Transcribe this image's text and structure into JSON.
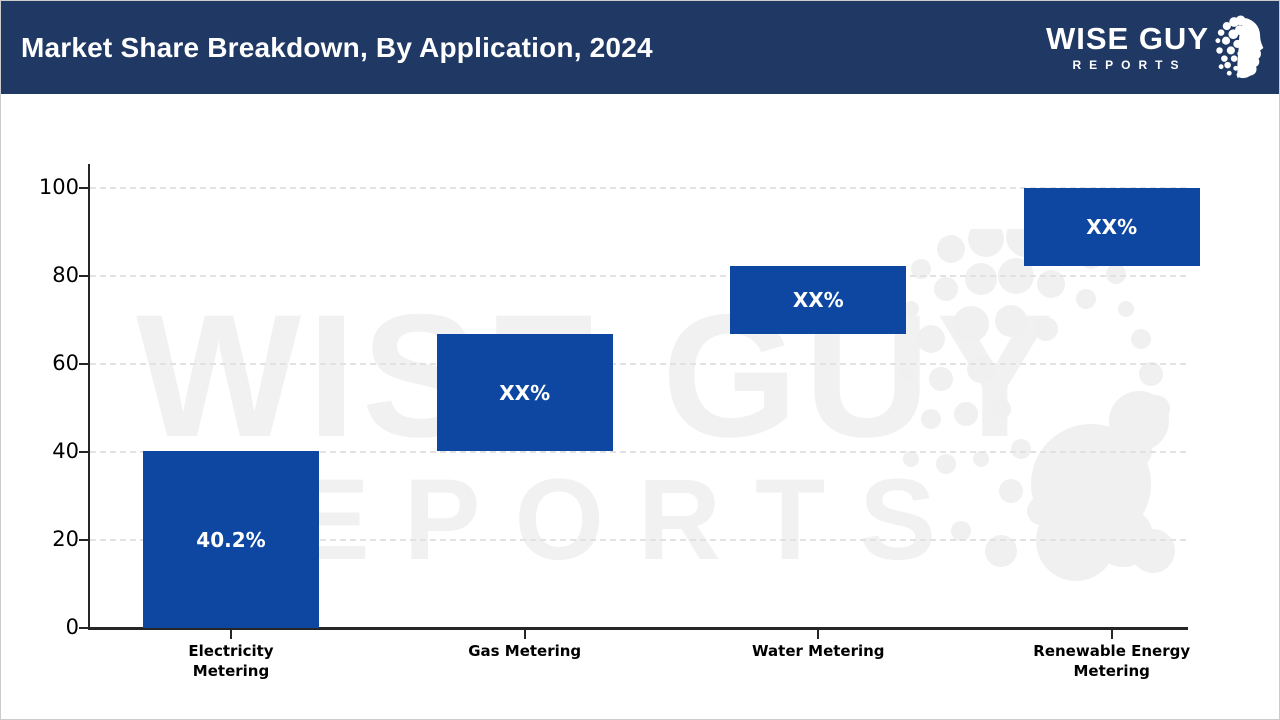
{
  "header": {
    "title": "Market Share Breakdown, By Application, 2024",
    "brand": {
      "line1": "WISE GUY",
      "line2": "REPORTS"
    }
  },
  "watermark": {
    "line1": "WISE GUY",
    "line2": "REPORTS"
  },
  "chart_data": {
    "type": "bar",
    "subtype": "waterfall",
    "title": "Market Share Breakdown, By Application, 2024",
    "categories": [
      "Electricity\nMetering",
      "Gas Metering",
      "Water Metering",
      "Renewable Energy\nMetering"
    ],
    "segments": [
      {
        "category": "Electricity Metering",
        "start": 0,
        "end": 40.2,
        "label": "40.2%"
      },
      {
        "category": "Gas Metering",
        "start": 40.2,
        "end": 66.8,
        "label": "XX%"
      },
      {
        "category": "Water Metering",
        "start": 66.8,
        "end": 82.3,
        "label": "XX%"
      },
      {
        "category": "Renewable Energy Metering",
        "start": 82.3,
        "end": 100,
        "label": "XX%"
      }
    ],
    "yticks": [
      0,
      20,
      40,
      60,
      80,
      100
    ],
    "ylim": [
      0,
      100
    ],
    "xlabel": "",
    "ylabel": "",
    "grid": "horizontal-dashed",
    "legend": "none",
    "bar_color": "#0d47a1",
    "bar_label_color": "#ffffff"
  },
  "colors": {
    "header_bg": "#1f3864",
    "bar": "#0d47a1",
    "grid": "#e2e2e2",
    "axis": "#262626",
    "watermark": "#f1f1f2",
    "page_border": "#cccccc"
  }
}
